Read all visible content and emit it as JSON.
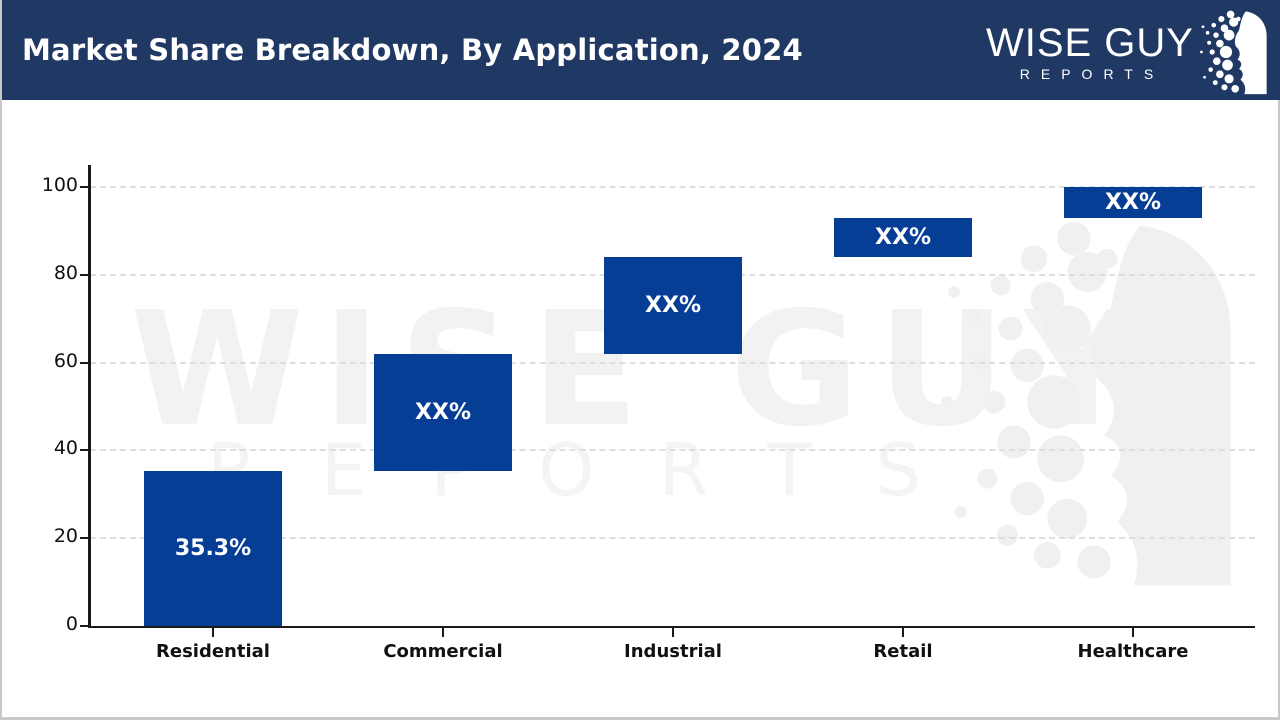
{
  "header": {
    "title": "Market Share Breakdown, By Application, 2024",
    "logo": {
      "name": "WISE GUY",
      "sub": "REPORTS"
    }
  },
  "watermark": {
    "name": "WISE GUY",
    "sub": "REPORTS"
  },
  "colors": {
    "header_bg": "#203864",
    "bar": "#063e96",
    "axis": "#1a1a1a",
    "grid_line": "#dedede",
    "watermark_text": "#f2f2f2",
    "page_border": "#c9c9c9",
    "bar_label_text": "#ffffff",
    "title_text": "#ffffff"
  },
  "chart_data": {
    "type": "bar",
    "variant": "waterfall",
    "title": "Market Share Breakdown, By Application, 2024",
    "categories": [
      "Residential",
      "Commercial",
      "Industrial",
      "Retail",
      "Healthcare"
    ],
    "segments": [
      {
        "category": "Residential",
        "start": 0,
        "end": 35.3,
        "label": "35.3%"
      },
      {
        "category": "Commercial",
        "start": 35.3,
        "end": 62,
        "label": "XX%"
      },
      {
        "category": "Industrial",
        "start": 62,
        "end": 84,
        "label": "XX%"
      },
      {
        "category": "Retail",
        "start": 84,
        "end": 93,
        "label": "XX%"
      },
      {
        "category": "Healthcare",
        "start": 93,
        "end": 100,
        "label": "XX%"
      }
    ],
    "yticks": [
      0,
      20,
      40,
      60,
      80,
      100
    ],
    "ylim": [
      0,
      105
    ],
    "xlabel": "",
    "ylabel": "",
    "grid": "horizontal-dashed",
    "legend": "none"
  }
}
